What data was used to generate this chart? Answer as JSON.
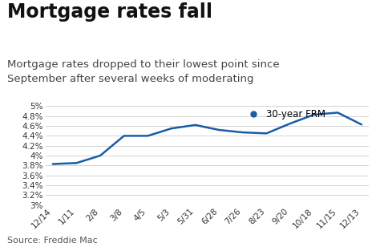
{
  "title": "Mortgage rates fall",
  "subtitle": "Mortgage rates dropped to their lowest point since\nSeptember after several weeks of moderating",
  "source": "Source: Freddie Mac",
  "legend_label": "30-year FRM",
  "line_color": "#1a5ca8",
  "background_color": "#ffffff",
  "x_labels": [
    "12/14",
    "1/11",
    "2/8",
    "3/8",
    "4/5",
    "5/3",
    "5/31",
    "6/28",
    "7/26",
    "8/23",
    "9/20",
    "10/18",
    "11/15",
    "12/13"
  ],
  "y_values": [
    3.83,
    3.85,
    4.0,
    4.4,
    4.4,
    4.55,
    4.62,
    4.52,
    4.47,
    4.45,
    4.65,
    4.83,
    4.87,
    4.63
  ],
  "ylim": [
    3.0,
    5.0
  ],
  "ytick_vals": [
    3.0,
    3.2,
    3.4,
    3.6,
    3.8,
    4.0,
    4.2,
    4.4,
    4.6,
    4.8,
    5.0
  ],
  "title_fontsize": 17,
  "subtitle_fontsize": 9.5,
  "source_fontsize": 8,
  "tick_fontsize": 7.5,
  "legend_fontsize": 8.5
}
